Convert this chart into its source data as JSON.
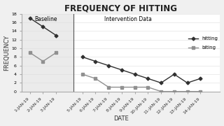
{
  "title": "FREQUENCY OF HITTING",
  "xlabel": "DATE",
  "ylabel": "FREQUENCY",
  "ylim": [
    0,
    18
  ],
  "yticks": [
    0,
    2,
    4,
    6,
    8,
    10,
    12,
    14,
    16,
    18
  ],
  "baseline_label": "Baseline",
  "intervention_label": "Intervention Data",
  "baseline_x_labels": [
    "1-JAN-19",
    "2-JAN-19",
    "3-JAN-19"
  ],
  "intervention_x_labels": [
    "5-JAN-19",
    "6-JAN-19",
    "7-JAN-19",
    "8-JAN-19",
    "9-JAN-19",
    "10-JAN-19",
    "11-JAN-19",
    "12-JAN-19",
    "13-JAN-19",
    "14-JAN-19"
  ],
  "hitting_baseline": [
    17,
    15,
    13
  ],
  "biting_baseline": [
    9,
    7,
    9
  ],
  "hitting_intervention": [
    8,
    7,
    6,
    5,
    4,
    3,
    2,
    4,
    2,
    3
  ],
  "biting_intervention": [
    4,
    3,
    1,
    1,
    1,
    1,
    0,
    0,
    0,
    0
  ],
  "hitting_color": "#303030",
  "biting_color": "#909090",
  "background_color": "#f0f0f0",
  "plot_bg_color": "#ffffff",
  "title_fontsize": 8.5,
  "label_fontsize": 6,
  "tick_fontsize": 4.5,
  "phase_fontsize": 5.5
}
